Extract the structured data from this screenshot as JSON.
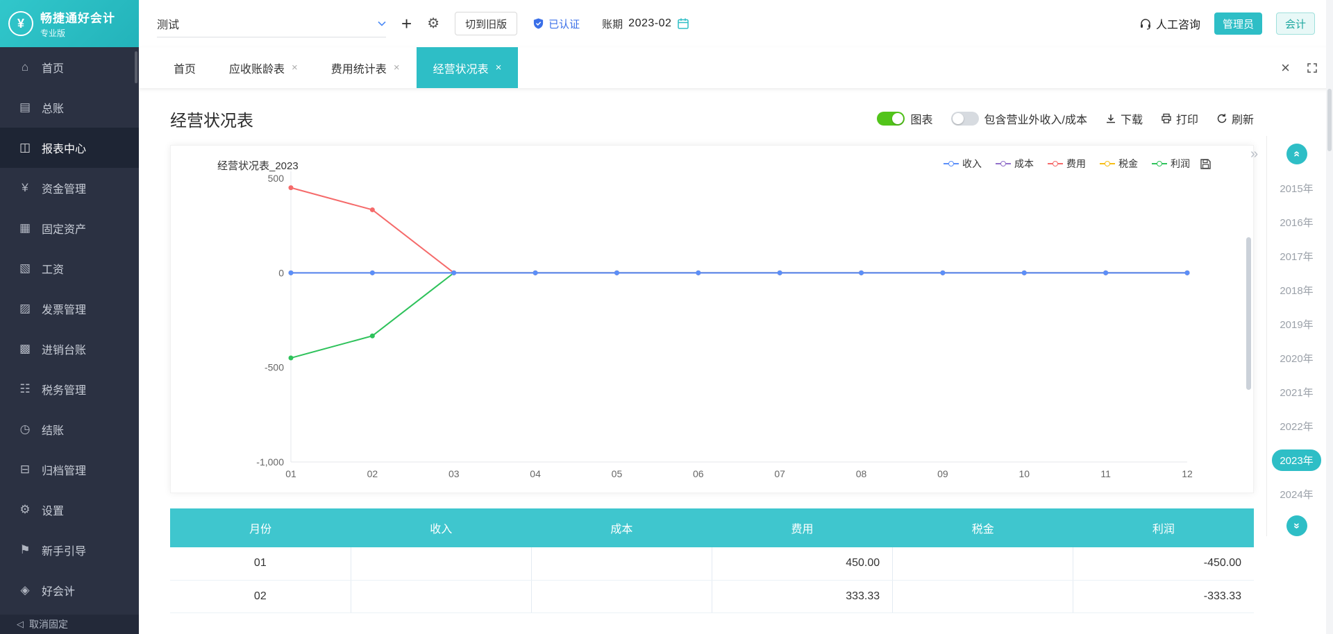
{
  "app": {
    "logo_icon": "¥",
    "logo_title": "畅捷通好会计",
    "logo_subtitle": "专业版"
  },
  "sidebar": {
    "items": [
      {
        "key": "home",
        "icon": "⌂",
        "label": "首页"
      },
      {
        "key": "general-ledger",
        "icon": "▤",
        "label": "总账"
      },
      {
        "key": "report-center",
        "icon": "◫",
        "label": "报表中心",
        "active": true
      },
      {
        "key": "funds",
        "icon": "¥",
        "label": "资金管理"
      },
      {
        "key": "fixed-assets",
        "icon": "▦",
        "label": "固定资产"
      },
      {
        "key": "payroll",
        "icon": "▧",
        "label": "工资"
      },
      {
        "key": "invoices",
        "icon": "▨",
        "label": "发票管理"
      },
      {
        "key": "purchase-sales",
        "icon": "▩",
        "label": "进销台账"
      },
      {
        "key": "tax",
        "icon": "☷",
        "label": "税务管理"
      },
      {
        "key": "closing",
        "icon": "◷",
        "label": "结账"
      },
      {
        "key": "archive",
        "icon": "⊟",
        "label": "归档管理"
      },
      {
        "key": "settings",
        "icon": "⚙",
        "label": "设置"
      },
      {
        "key": "guide",
        "icon": "⚑",
        "label": "新手引导"
      },
      {
        "key": "more",
        "icon": "◈",
        "label": "好会计",
        "clipped": true
      }
    ],
    "scroll_more_icon": "∨",
    "unpin_icon": "◁",
    "unpin_label": "取消固定"
  },
  "topbar": {
    "company_value": "测试",
    "plus_icon": "+",
    "gear_icon": "⚙",
    "old_version_button": "切到旧版",
    "certified_badge": "已认证",
    "period_label": "账期",
    "period_value": "2023-02",
    "consult_label": "人工咨询",
    "admin_button": "管理员",
    "accountant_button": "会计"
  },
  "tabs": {
    "items": [
      {
        "key": "home",
        "label": "首页",
        "closable": false
      },
      {
        "key": "receivables-aging",
        "label": "应收账龄表",
        "closable": true
      },
      {
        "key": "expense-stats",
        "label": "费用统计表",
        "closable": true
      },
      {
        "key": "operating-status",
        "label": "经营状况表",
        "closable": true,
        "active": true
      }
    ],
    "close_icon": "×"
  },
  "page": {
    "title": "经营状况表",
    "toggles": [
      {
        "label": "图表",
        "on": true
      },
      {
        "label": "包含营业外收入/成本",
        "on": false
      }
    ],
    "download_label": "下载",
    "print_label": "打印",
    "refresh_label": "刷新"
  },
  "chart_data": {
    "type": "line",
    "title": "经营状况表_2023",
    "categories": [
      "01",
      "02",
      "03",
      "04",
      "05",
      "06",
      "07",
      "08",
      "09",
      "10",
      "11",
      "12"
    ],
    "series": [
      {
        "key": "income",
        "name": "收入",
        "color": "#5B8FF9",
        "values": [
          0,
          0,
          0,
          0,
          0,
          0,
          0,
          0,
          0,
          0,
          0,
          0
        ]
      },
      {
        "key": "cost",
        "name": "成本",
        "color": "#9270CA",
        "values": [
          0,
          0,
          0,
          0,
          0,
          0,
          0,
          0,
          0,
          0,
          0,
          0
        ]
      },
      {
        "key": "expense",
        "name": "费用",
        "color": "#F56A6A",
        "values": [
          450,
          333.33,
          0,
          0,
          0,
          0,
          0,
          0,
          0,
          0,
          0,
          0
        ]
      },
      {
        "key": "tax",
        "name": "税金",
        "color": "#F6BD16",
        "values": [
          0,
          0,
          0,
          0,
          0,
          0,
          0,
          0,
          0,
          0,
          0,
          0
        ]
      },
      {
        "key": "profit",
        "name": "利润",
        "color": "#2EC25B",
        "values": [
          -450,
          -333.33,
          0,
          0,
          0,
          0,
          0,
          0,
          0,
          0,
          0,
          0
        ]
      }
    ],
    "ylim": [
      -1000,
      500
    ],
    "yticks": [
      {
        "label": "500",
        "value": 500
      },
      {
        "label": "0",
        "value": 0
      },
      {
        "label": "-500",
        "value": -500
      },
      {
        "label": "-1,000",
        "value": -1000
      }
    ],
    "xlabel": "",
    "ylabel": "",
    "grid": false,
    "legend_position": "top-right"
  },
  "table": {
    "columns": [
      "月份",
      "收入",
      "成本",
      "费用",
      "税金",
      "利润"
    ],
    "rows": [
      [
        "01",
        "",
        "",
        "450.00",
        "",
        "-450.00"
      ],
      [
        "02",
        "",
        "",
        "333.33",
        "",
        "-333.33"
      ]
    ]
  },
  "years": {
    "collapse_icon": "»",
    "scroll_icon": "«",
    "items": [
      "2015年",
      "2016年",
      "2017年",
      "2018年",
      "2019年",
      "2020年",
      "2021年",
      "2022年",
      "2023年",
      "2024年"
    ],
    "active": "2023年"
  },
  "colors": {
    "accent": "#2EBEC6",
    "table_header": "#3FC6CE",
    "toggle_on": "#52C41A",
    "certified_blue": "#3A6FE8",
    "sidebar_bg": "#2B3142",
    "sidebar_active_bg": "#1E2534"
  }
}
